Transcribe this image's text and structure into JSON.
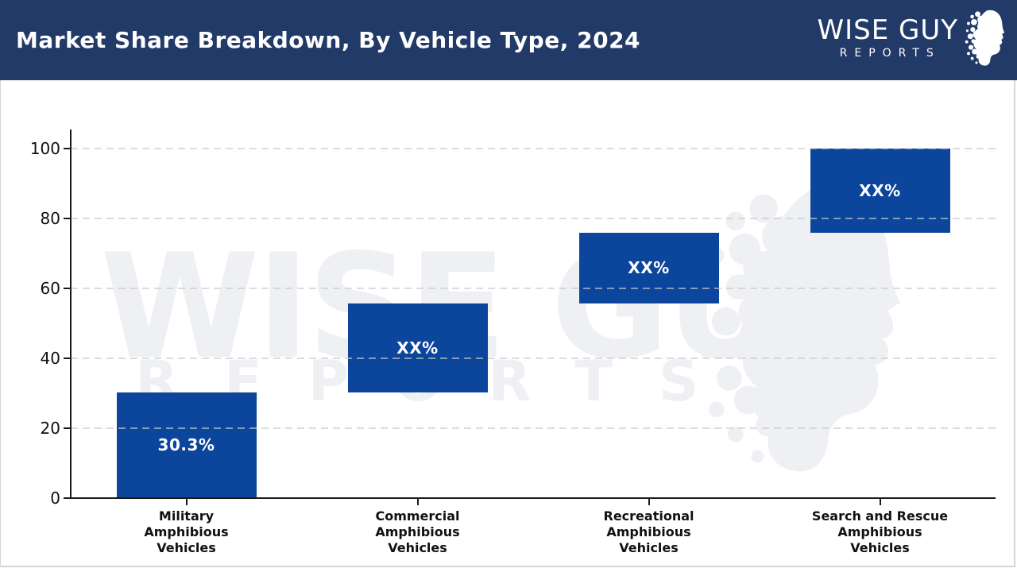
{
  "header": {
    "title": "Market Share Breakdown, By Vehicle Type, 2024",
    "logo": {
      "wordmark": "WISE GUY",
      "subtext": "REPORTS"
    }
  },
  "watermark": {
    "wordmark": "WISE GUY",
    "subtext": "REPORTS"
  },
  "chart_data": {
    "type": "bar",
    "subtype": "waterfall",
    "title": "Market Share Breakdown, By Vehicle Type, 2024",
    "xlabel": "",
    "ylabel": "",
    "unit": "percent",
    "ylim": [
      0,
      105
    ],
    "y_ticks": [
      0,
      20,
      40,
      60,
      80,
      100
    ],
    "grid": "horizontal-dashed",
    "legend": "none",
    "bar_color": "#0c459c",
    "value_label_color": "#ffffff",
    "categories": [
      [
        "Military",
        "Amphibious",
        "Vehicles"
      ],
      [
        "Commercial",
        "Amphibious",
        "Vehicles"
      ],
      [
        "Recreational",
        "Amphibious",
        "Vehicles"
      ],
      [
        "Search and Rescue",
        "Amphibious",
        "Vehicles"
      ]
    ],
    "segments": [
      {
        "category": "Military Amphibious Vehicles",
        "start": 0,
        "end": 30.3,
        "label": "30.3%"
      },
      {
        "category": "Commercial Amphibious Vehicles",
        "start": 30.3,
        "end": 55.7,
        "label": "XX%"
      },
      {
        "category": "Recreational Amphibious Vehicles",
        "start": 55.7,
        "end": 75.9,
        "label": "XX%"
      },
      {
        "category": "Search and Rescue Amphibious Vehicles",
        "start": 75.9,
        "end": 100,
        "label": "XX%"
      }
    ]
  },
  "colors": {
    "header_bg": "#223a68",
    "bar": "#0c459c",
    "axis": "#1a1a1a",
    "grid": "#c9c9c9",
    "watermark": "#eff0f3",
    "frame": "#d5d5d5"
  }
}
